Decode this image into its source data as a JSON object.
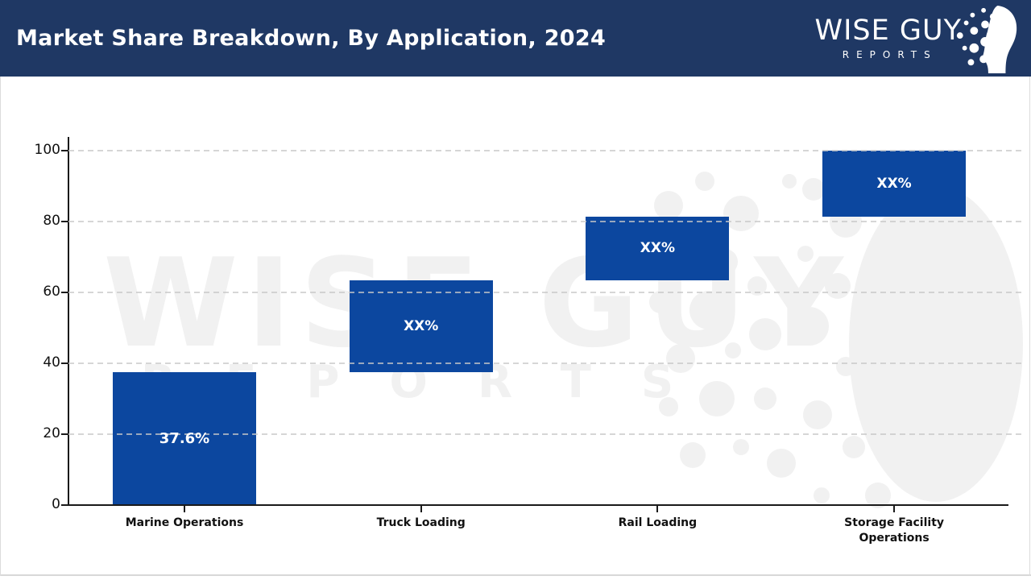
{
  "header": {
    "title": "Market Share Breakdown, By Application, 2024",
    "logo": {
      "name": "WISE GUY",
      "sub": "REPORTS"
    }
  },
  "watermark": {
    "name": "WISE GUY",
    "sub": "REPORTS"
  },
  "chart_data": {
    "type": "bar",
    "variant": "floating-waterfall",
    "title": "Market Share Breakdown, By Application, 2024",
    "categories": [
      "Marine Operations",
      "Truck Loading",
      "Rail Loading",
      "Storage Facility Operations"
    ],
    "segments": [
      {
        "category": "Marine Operations",
        "start": 0,
        "end": 37.6,
        "label": "37.6%"
      },
      {
        "category": "Truck Loading",
        "start": 37.6,
        "end": 63.5,
        "label": "XX%"
      },
      {
        "category": "Rail Loading",
        "start": 63.5,
        "end": 81.4,
        "label": "XX%"
      },
      {
        "category": "Storage Facility Operations",
        "start": 81.4,
        "end": 100,
        "label": "XX%"
      }
    ],
    "ylim": [
      0,
      100
    ],
    "yticks": [
      0,
      20,
      40,
      60,
      80,
      100
    ],
    "xlabel": "",
    "ylabel": "",
    "grid": "horizontal-dashed-drawn-over-bars",
    "legend": "none",
    "colors": {
      "bar": "#0c479f",
      "bar_label": "#ffffff",
      "axis": "#1a1a1a",
      "grid": "rgba(200,200,200,0.75)",
      "header_bg": "#1f3864",
      "watermark": "#f1f1f1"
    }
  }
}
